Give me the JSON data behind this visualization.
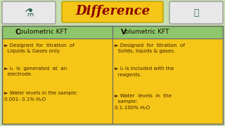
{
  "title": "Difference",
  "title_bg": "#f5c518",
  "title_color": "#8B0000",
  "title_fontsize": 13,
  "header_bg": "#8dc66b",
  "header_border": "#666666",
  "content_bg": "#f5c518",
  "col1_header": "Coulometric KFT",
  "col2_header": "Volumetric KFT",
  "col1_header_first": "C",
  "col2_header_first": "V",
  "col1_items": [
    "► Designed  for  titration  of\n  Liquids & Gases only.",
    "► I₂  is  generated  at  an\n  electrode.",
    "► Water levels in the sample:\n0.001- 0.1% H₂O"
  ],
  "col2_items": [
    "► Designed  for  titration  of\n  Solids, liquids & gases.",
    "► I₂ is included with the\n  reagents.",
    "► Water  levels  in  the\n  sample:\n0.1-100% H₂O"
  ],
  "bg_color": "#c8deb0",
  "text_color": "#3d2000",
  "header_text_color": "#1a0d00",
  "outer_border": "#888888"
}
